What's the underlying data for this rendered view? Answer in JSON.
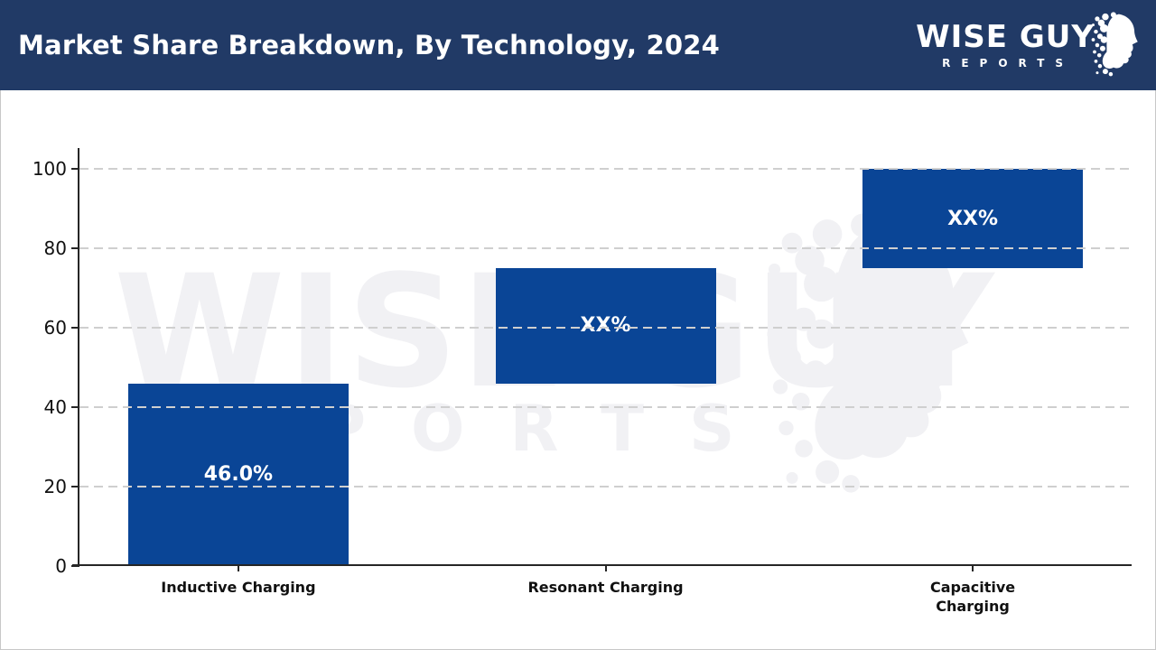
{
  "header": {
    "title": "Market Share Breakdown, By Technology, 2024",
    "bg_color": "#213a66",
    "logo": {
      "line1": "WISE GUY",
      "line2": "REPORTS"
    }
  },
  "watermark": {
    "line1": "WISE GUY",
    "line2": "REPORTS"
  },
  "chart_data": {
    "type": "bar",
    "subtype": "waterfall",
    "title": "Market Share Breakdown, By Technology, 2024",
    "categories": [
      "Inductive Charging",
      "Resonant Charging",
      "Capacitive\nCharging"
    ],
    "segments": [
      {
        "category": "Inductive Charging",
        "start": 0,
        "end": 46,
        "label": "46.0%"
      },
      {
        "category": "Resonant Charging",
        "start": 46,
        "end": 75,
        "label": "XX%"
      },
      {
        "category": "Capacitive Charging",
        "start": 75,
        "end": 100,
        "label": "XX%"
      }
    ],
    "xlabel": "",
    "ylabel": "",
    "ylim": [
      0,
      100
    ],
    "yticks": [
      0,
      20,
      40,
      60,
      80,
      100
    ],
    "grid": true,
    "grid_style": "dashed",
    "legend_position": "none",
    "bar_color": "#0a4596",
    "bar_label_color": "#ffffff"
  }
}
